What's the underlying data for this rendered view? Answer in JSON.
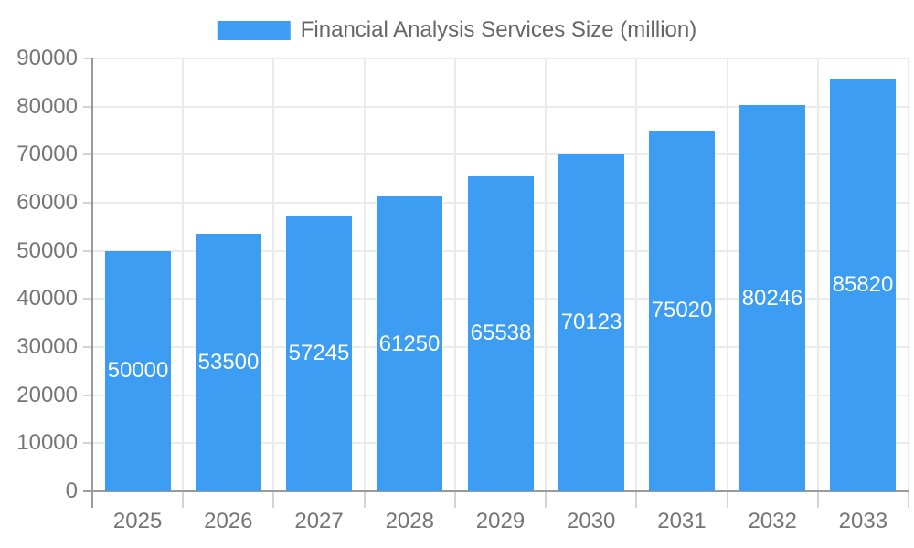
{
  "chart_data": {
    "type": "bar",
    "title": "Financial Analysis Services Size (million)",
    "legend_position": "top",
    "categories": [
      "2025",
      "2026",
      "2027",
      "2028",
      "2029",
      "2030",
      "2031",
      "2032",
      "2033"
    ],
    "values": [
      50000,
      53500,
      57245,
      61250,
      65538,
      70123,
      75020,
      80246,
      85820
    ],
    "xlabel": "",
    "ylabel": "",
    "ylim": [
      0,
      90000
    ],
    "yticks": [
      0,
      10000,
      20000,
      30000,
      40000,
      50000,
      60000,
      70000,
      80000,
      90000
    ],
    "bar_labels_visible": true,
    "grid": true,
    "colors": {
      "bar": "#3d9df2",
      "bar_label": "#ffffff",
      "grid": "#ebebeb",
      "tick_mark": "#d4d4d4",
      "axis": "#9a9a9a",
      "tick_text": "#757575",
      "legend_text": "#666666",
      "background": "#ffffff"
    }
  }
}
